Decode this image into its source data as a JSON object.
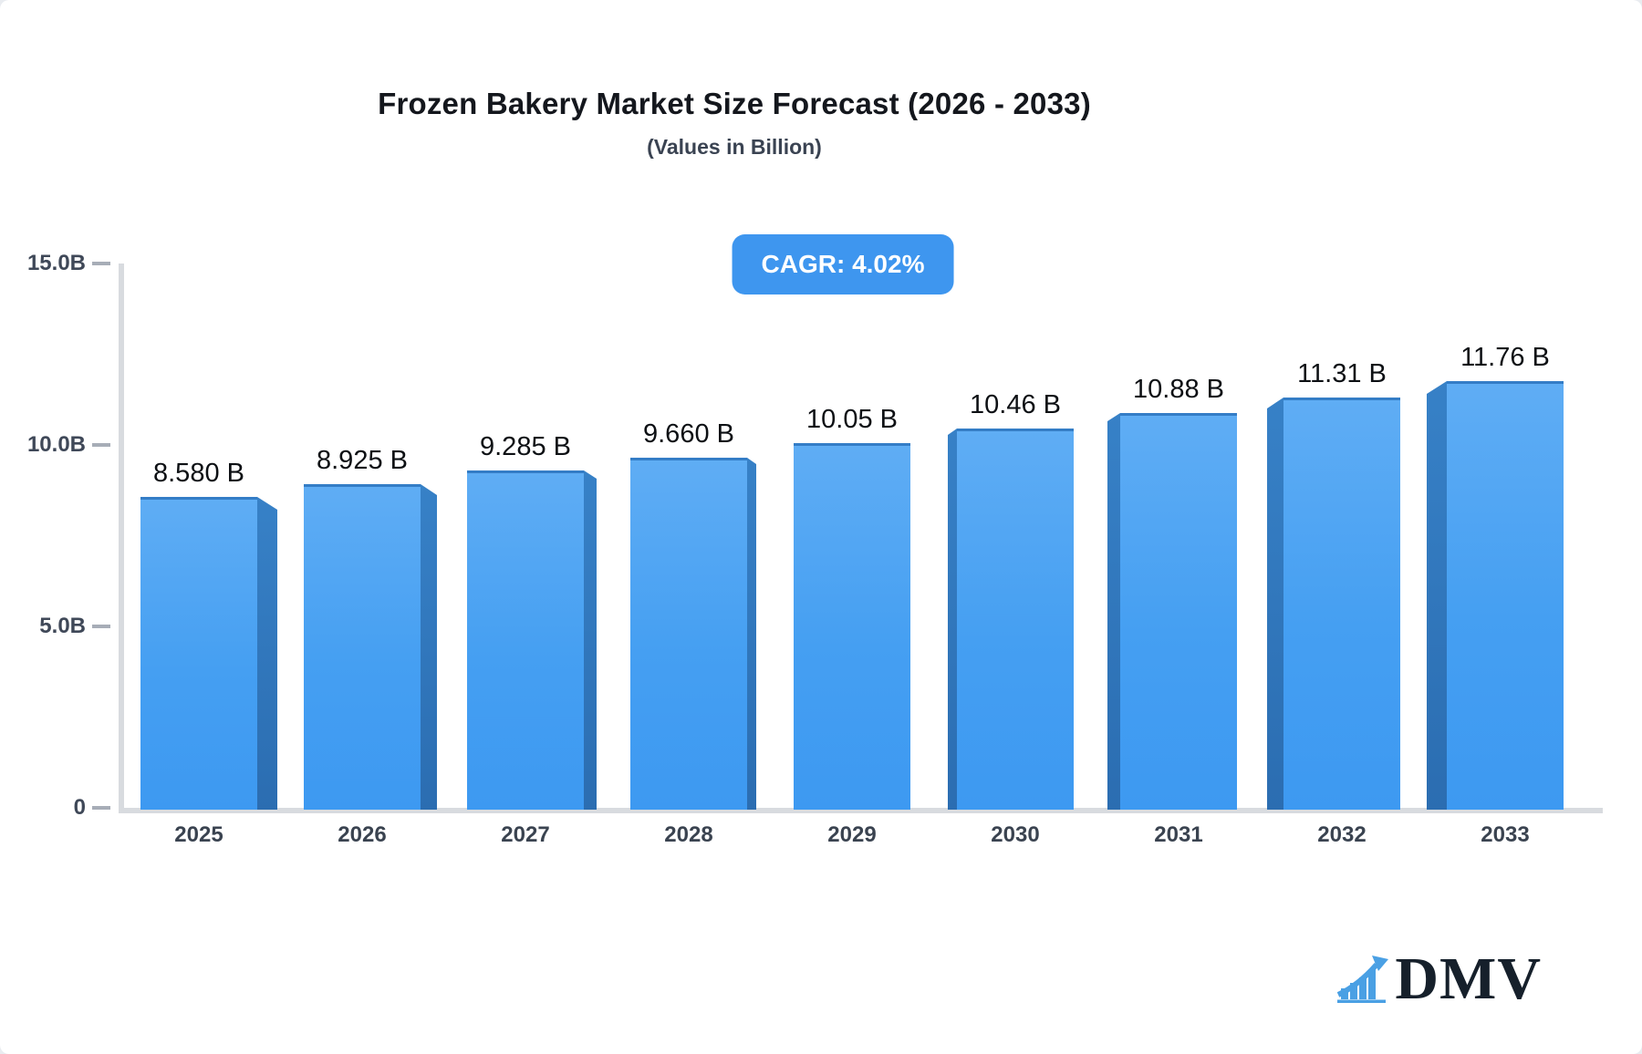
{
  "chart_data": {
    "type": "bar",
    "title": "Frozen Bakery Market Size Forecast (2026 - 2033)",
    "subtitle": "(Values in Billion)",
    "cagr_badge": "CAGR: 4.02%",
    "categories": [
      "2025",
      "2026",
      "2027",
      "2028",
      "2029",
      "2030",
      "2031",
      "2032",
      "2033"
    ],
    "values": [
      8.58,
      8.925,
      9.285,
      9.66,
      10.05,
      10.46,
      10.88,
      11.31,
      11.76
    ],
    "value_labels": [
      "8.580 B",
      "8.925 B",
      "9.285 B",
      "9.660 B",
      "10.05 B",
      "10.46 B",
      "10.88 B",
      "11.31 B",
      "11.76 B"
    ],
    "ylim": [
      0,
      15
    ],
    "yticks": [
      {
        "value": 0,
        "label": "0"
      },
      {
        "value": 5,
        "label": "5.0B"
      },
      {
        "value": 10,
        "label": "10.0B"
      },
      {
        "value": 15,
        "label": "15.0B"
      }
    ],
    "grid": false,
    "legend": "none",
    "colors": {
      "bar_face_top": "#5fadf4",
      "bar_face_bottom": "#3d99f1",
      "bar_side": "#2e77bd",
      "bar_top_edge": "#347dc6",
      "badge_background": "#3e96ef",
      "badge_text": "#ffffff",
      "axis_line": "#d8dbdf",
      "tick_dash": "#a7adb7",
      "axis_label": "#3f4858",
      "value_label": "#0d1014",
      "logo_blue": "#4aa0e4",
      "logo_navy": "#16202b"
    }
  },
  "branding": {
    "logo_text": "DMV",
    "logo_icon": "growth-bar-chart-icon"
  }
}
